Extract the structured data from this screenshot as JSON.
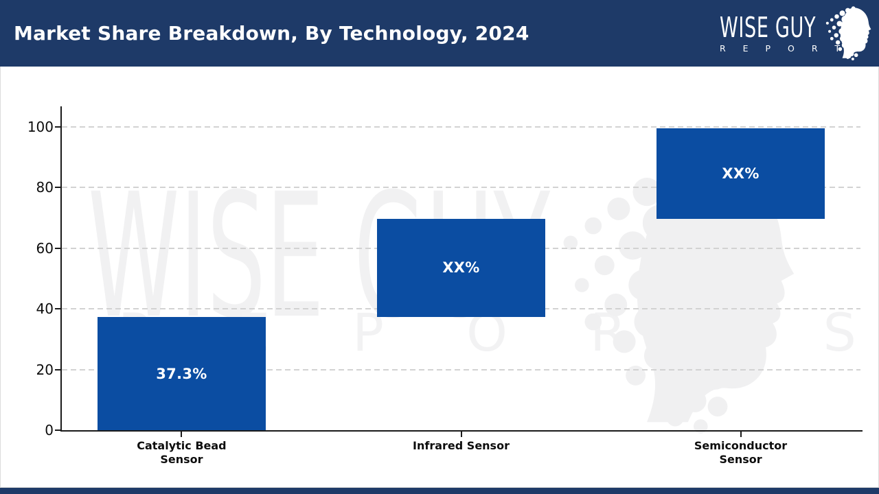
{
  "header": {
    "title": "Market Share Breakdown, By Technology, 2024",
    "logo_line1": "WISE GUY",
    "logo_line2": "R E P O R T S"
  },
  "watermark": {
    "line1": "WISE GUY",
    "line2": "R E P O R T S"
  },
  "colors": {
    "header_bg": "#1E3A68",
    "footer_bg": "#1E3A68",
    "bar": "#0B4DA2",
    "grid": "#D2D2D2",
    "axis": "#1A1A1A",
    "bar_label": "#FFFFFF",
    "tick_text": "#0D0D0D",
    "watermark": "#F1F1F2"
  },
  "chart_data": {
    "type": "bar",
    "subtype": "floating-stacked-percent",
    "title": "Market Share Breakdown, By Technology, 2024",
    "categories": [
      "Catalytic Bead Sensor",
      "Infrared Sensor",
      "Semiconductor Sensor"
    ],
    "category_lines": [
      [
        "Catalytic Bead",
        "Sensor"
      ],
      [
        "Infrared Sensor"
      ],
      [
        "Semiconductor",
        "Sensor"
      ]
    ],
    "series": [
      {
        "name": "Market Share (%)",
        "ranges": [
          [
            0,
            37.3
          ],
          [
            37.3,
            69.8
          ],
          [
            69.8,
            99.6
          ]
        ],
        "segment_values": [
          37.3,
          32.5,
          29.8
        ],
        "labels": [
          "37.3%",
          "XX%",
          "XX%"
        ]
      }
    ],
    "xlabel": "",
    "ylabel": "",
    "yticks": [
      0,
      20,
      40,
      60,
      80,
      100
    ],
    "ylim": [
      0,
      106.8
    ],
    "grid": "dashed-horizontal",
    "legend": "none",
    "bar_color": "#0B4DA2",
    "bar_centers_frac": [
      0.15,
      0.5,
      0.85
    ],
    "bar_width_frac": 0.21
  }
}
